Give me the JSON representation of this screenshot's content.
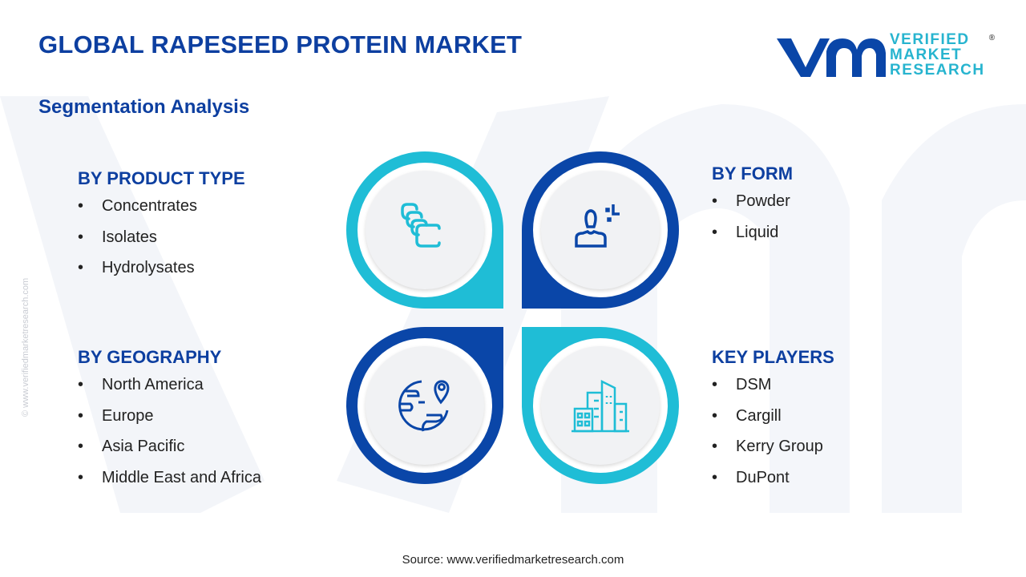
{
  "header": {
    "title": "GLOBAL RAPESEED PROTEIN MARKET",
    "subtitle": "Segmentation Analysis"
  },
  "logo": {
    "line1": "VERIFIED",
    "line2": "MARKET",
    "line3": "RESEARCH",
    "mark": "vmr"
  },
  "side_text": "© www.verifiedmarketresearch.com",
  "colors": {
    "dark_blue": "#0a46a8",
    "cyan": "#1fbdd6",
    "title": "#0d3fa0"
  },
  "segments": {
    "product_type": {
      "heading": "BY PRODUCT TYPE",
      "icon": "layers-icon",
      "items": [
        "Concentrates",
        "Isolates",
        "Hydrolysates"
      ]
    },
    "form": {
      "heading": "BY FORM",
      "icon": "person-icon",
      "items": [
        "Powder",
        "Liquid"
      ]
    },
    "geography": {
      "heading": "BY GEOGRAPHY",
      "icon": "globe-pin-icon",
      "items": [
        "North America",
        "Europe",
        "Asia Pacific",
        "Middle East and Africa"
      ]
    },
    "key_players": {
      "heading": "KEY PLAYERS",
      "icon": "buildings-icon",
      "items": [
        "DSM",
        "Cargill",
        "Kerry Group",
        "DuPont"
      ]
    }
  },
  "footer": {
    "source": "Source: www.verifiedmarketresearch.com"
  }
}
